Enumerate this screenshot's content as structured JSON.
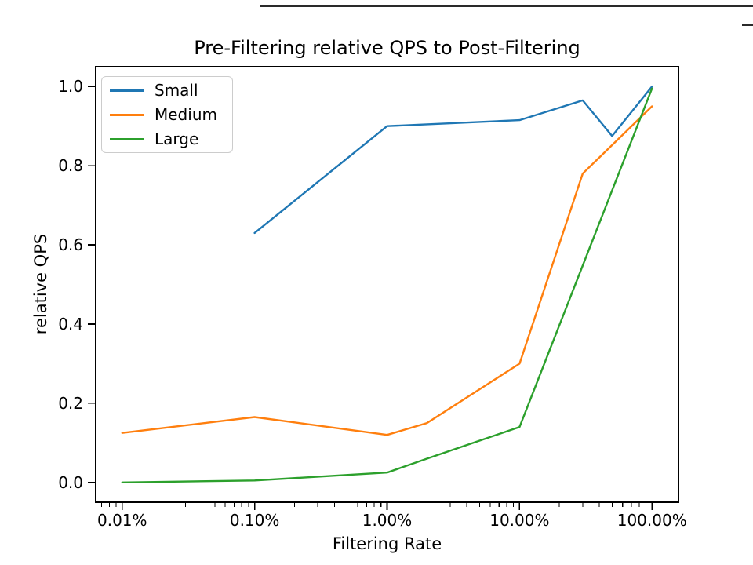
{
  "figure": {
    "title": "Pre-Filtering relative QPS to Post-Filtering",
    "xlabel": "Filtering Rate",
    "ylabel": "relative QPS",
    "background_color": "#ffffff",
    "spine_color": "#000000"
  },
  "axes": {
    "x_scale": "log",
    "x_tick_labels": [
      "0.01%",
      "0.10%",
      "1.00%",
      "10.00%",
      "100.00%"
    ],
    "x_tick_values_pct": [
      0.01,
      0.1,
      1,
      10,
      100
    ],
    "y_tick_labels": [
      "0.0",
      "0.2",
      "0.4",
      "0.6",
      "0.8",
      "1.0"
    ],
    "y_tick_values": [
      0.0,
      0.2,
      0.4,
      0.6,
      0.8,
      1.0
    ],
    "xlim_pct": [
      0.0063,
      158.5
    ],
    "ylim": [
      -0.05,
      1.05
    ],
    "grid": "off"
  },
  "legend": {
    "position": "upper-left",
    "entries": [
      {
        "label": "Small",
        "color": "#1f77b4"
      },
      {
        "label": "Medium",
        "color": "#ff7f0e"
      },
      {
        "label": "Large",
        "color": "#2ca02c"
      }
    ]
  },
  "chart_data": {
    "type": "line",
    "title": "Pre-Filtering relative QPS to Post-Filtering",
    "xlabel": "Filtering Rate",
    "ylabel": "relative QPS",
    "x_unit": "filtering rate in percent, log scale",
    "ylim": [
      0.0,
      1.0
    ],
    "series": [
      {
        "name": "Small",
        "color": "#1f77b4",
        "points": [
          [
            0.1,
            0.63
          ],
          [
            1,
            0.9
          ],
          [
            10,
            0.915
          ],
          [
            30,
            0.965
          ],
          [
            50,
            0.875
          ],
          [
            100,
            1.0
          ]
        ]
      },
      {
        "name": "Medium",
        "color": "#ff7f0e",
        "points": [
          [
            0.01,
            0.125
          ],
          [
            0.1,
            0.165
          ],
          [
            1,
            0.12
          ],
          [
            2,
            0.15
          ],
          [
            10,
            0.3
          ],
          [
            30,
            0.78
          ],
          [
            100,
            0.95
          ]
        ]
      },
      {
        "name": "Large",
        "color": "#2ca02c",
        "points": [
          [
            0.01,
            0.0
          ],
          [
            0.1,
            0.005
          ],
          [
            1,
            0.025
          ],
          [
            2,
            0.06
          ],
          [
            10,
            0.14
          ],
          [
            100,
            0.995
          ]
        ]
      }
    ]
  }
}
